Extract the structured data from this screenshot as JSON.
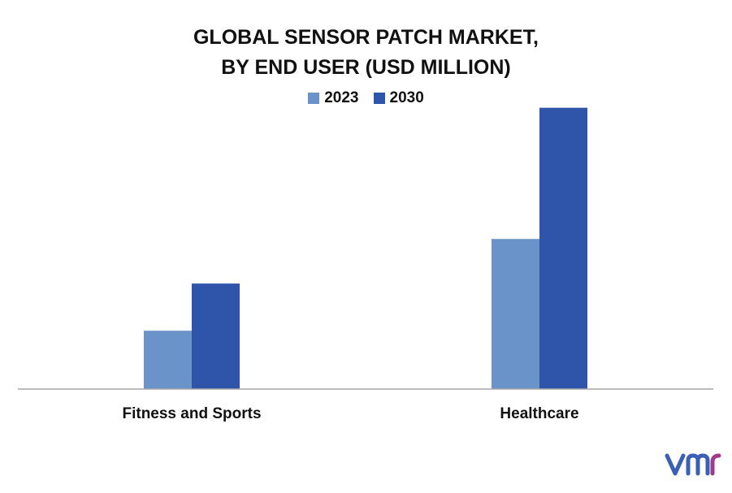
{
  "chart_data": {
    "type": "bar",
    "title_lines": [
      "GLOBAL SENSOR PATCH MARKET,",
      "BY END USER (USD MILLION)"
    ],
    "categories": [
      "Fitness and Sports",
      "Healthcare"
    ],
    "series": [
      {
        "name": "2023",
        "values": [
          68,
          175
        ],
        "color": "#6a93c9"
      },
      {
        "name": "2030",
        "values": [
          123,
          328
        ],
        "color": "#2f55ab"
      }
    ],
    "ylim": [
      0,
      340
    ],
    "grid": false,
    "legend_position": "top-center",
    "axis_color": "#a6a6a6",
    "brand_colors": [
      "#3b5fb5",
      "#a03b8c"
    ]
  }
}
